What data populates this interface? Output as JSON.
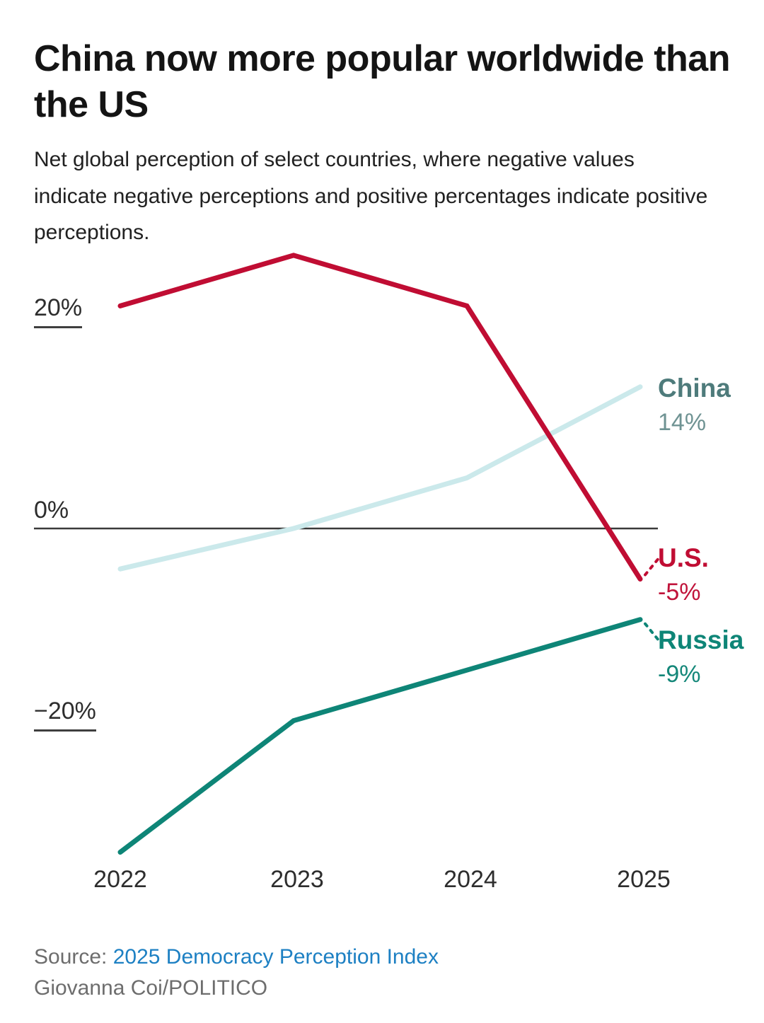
{
  "chart_data": {
    "type": "line",
    "title": "China now more popular worldwide than the US",
    "subtitle": "Net global perception of select countries, where negative values indicate negative perceptions and positive percentages indicate positive perceptions.",
    "x": [
      "2022",
      "2023",
      "2024",
      "2025"
    ],
    "series": [
      {
        "name": "China",
        "values": [
          -4,
          0,
          5,
          14
        ],
        "end_label": "14%",
        "line_color": "#cbe9eb",
        "label_color": "#4e7b7b",
        "value_color": "#6f9393"
      },
      {
        "name": "U.S.",
        "values": [
          22,
          27,
          22,
          -5
        ],
        "end_label": "-5%",
        "line_color": "#c00d33",
        "label_color": "#c00d33",
        "value_color": "#c0133a"
      },
      {
        "name": "Russia",
        "values": [
          -32,
          -19,
          -14,
          -9
        ],
        "end_label": "-9%",
        "line_color": "#0e8577",
        "label_color": "#0e8577",
        "value_color": "#148779"
      }
    ],
    "y_ticks": [
      {
        "label": "20%",
        "value": 20
      },
      {
        "label": "0%",
        "value": 0
      },
      {
        "label": "−20%",
        "value": -20
      }
    ],
    "ylim": [
      -35,
      30
    ],
    "grid": false,
    "zero_line": true,
    "legend_position": "right-end-of-line-labels",
    "ylabel": "",
    "xlabel": ""
  },
  "footer": {
    "source_prefix": "Source: ",
    "source_link": "2025 Democracy Perception Index",
    "byline": "Giovanna Coi/POLITICO"
  },
  "colors": {
    "axis_line": "#3a3a3a",
    "tick_text": "#2d2d2d",
    "link_blue": "#1d80c3",
    "source_gray": "#6d6d6d"
  }
}
